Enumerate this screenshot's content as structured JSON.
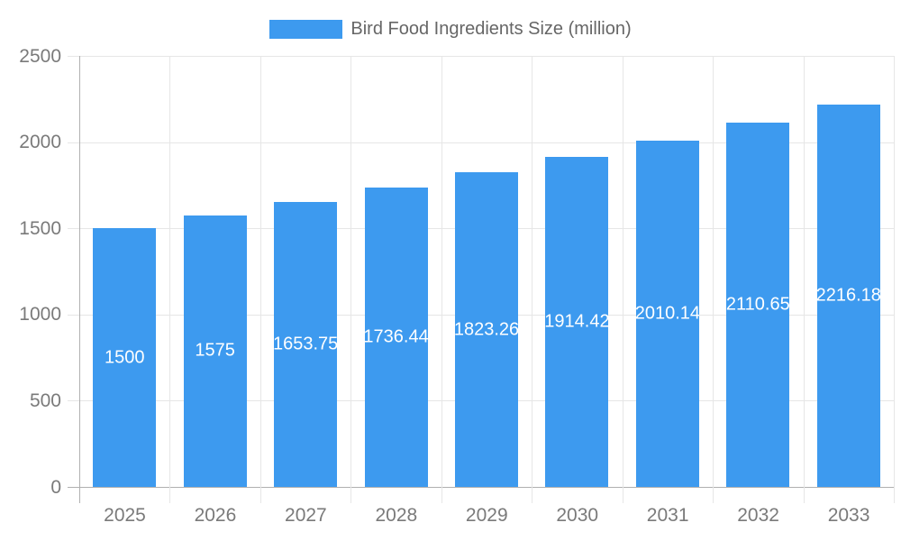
{
  "chart_data": {
    "type": "bar",
    "title": "",
    "legend": "Bird Food Ingredients Size (million)",
    "legend_position": "top",
    "categories": [
      "2025",
      "2026",
      "2027",
      "2028",
      "2029",
      "2030",
      "2031",
      "2032",
      "2033"
    ],
    "values": [
      1500,
      1575,
      1653.75,
      1736.44,
      1823.26,
      1914.42,
      2010.14,
      2110.65,
      2216.18
    ],
    "value_labels": [
      "1500",
      "1575",
      "1653.75",
      "1736.44",
      "1823.26",
      "1914.42",
      "2010.14",
      "2110.65",
      "2216.18"
    ],
    "xlabel": "",
    "ylabel": "",
    "ylim": [
      0,
      2500
    ],
    "yticks": [
      0,
      500,
      1000,
      1500,
      2000,
      2500
    ],
    "ytick_labels": [
      "0",
      "500",
      "1000",
      "1500",
      "2000",
      "2500"
    ],
    "grid": true,
    "colors": {
      "bar": "#3d9aef",
      "axis_line": "#b0b0b0",
      "grid_line": "#e6e6e6",
      "tick_text": "#7a7a7a",
      "legend_text": "#666666",
      "value_label_text": "#ffffff",
      "background": "#ffffff"
    }
  }
}
